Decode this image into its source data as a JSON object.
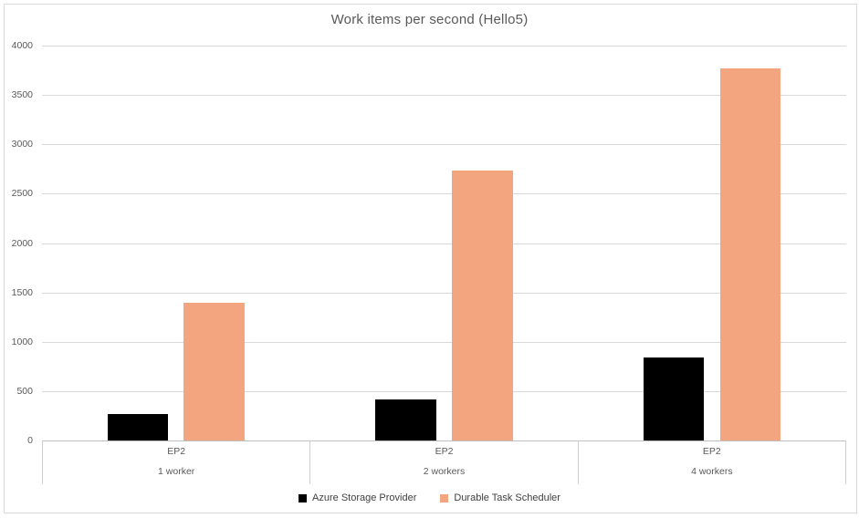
{
  "chart_data": {
    "type": "bar",
    "title": "Work items per second (Hello5)",
    "categories": [
      {
        "group": "EP2",
        "workers": "1 worker"
      },
      {
        "group": "EP2",
        "workers": "2 workers"
      },
      {
        "group": "EP2",
        "workers": "4 workers"
      }
    ],
    "series": [
      {
        "name": "Azure Storage Provider",
        "color": "#000000",
        "values": [
          265,
          420,
          840
        ]
      },
      {
        "name": "Durable Task Scheduler",
        "color": "#F2A57E",
        "values": [
          1395,
          2735,
          3770
        ]
      }
    ],
    "ylim": [
      0,
      4000
    ],
    "ytick_step": 500,
    "xlabel": "",
    "ylabel": "",
    "grid": true,
    "legend_position": "bottom"
  },
  "colors": {
    "background": "#FFFFFF",
    "chart_border": "#D9D9D9",
    "gridline": "#D9D9D9",
    "axis_line": "#BFBFBF",
    "category_divider": "#CFCFCF",
    "title_text": "#595959",
    "axis_text": "#595959",
    "legend_text": "#404040"
  }
}
